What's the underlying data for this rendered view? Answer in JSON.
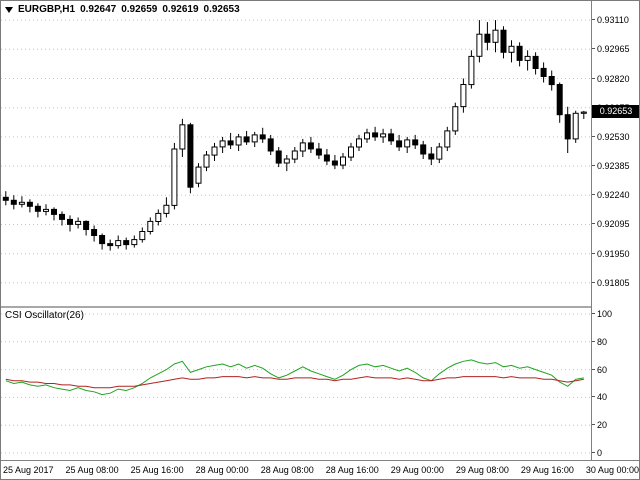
{
  "header": {
    "symbol": "EURGBP,H1",
    "open": "0.92647",
    "high": "0.92659",
    "low": "0.92619",
    "close": "0.92653",
    "marker_icon": "triangle-down-icon"
  },
  "price_axis": {
    "labels": [
      "0.93110",
      "0.92965",
      "0.92820",
      "0.92675",
      "0.92530",
      "0.92385",
      "0.92240",
      "0.92095",
      "0.91950",
      "0.91805"
    ],
    "current_price": "0.92653",
    "tag_bg": "#000000",
    "tag_text_color": "#ffffff"
  },
  "indicator": {
    "name": "CSI Oscillator(26)",
    "axis_labels": [
      "100",
      "80",
      "60",
      "40",
      "20",
      "0"
    ]
  },
  "time_axis": {
    "labels": [
      "25 Aug 2017",
      "25 Aug 08:00",
      "25 Aug 16:00",
      "28 Aug 00:00",
      "28 Aug 08:00",
      "28 Aug 16:00",
      "29 Aug 00:00",
      "29 Aug 08:00",
      "29 Aug 16:00",
      "30 Aug 00:00"
    ]
  },
  "colors": {
    "background": "#ffffff",
    "border": "#7a7a7a",
    "grid": "#c4c4c4",
    "candle_outline": "#000000",
    "bull_fill": "#ffffff",
    "bear_fill": "#000000",
    "osc_green": "#1fa41f",
    "osc_red": "#b22222",
    "text": "#000000"
  },
  "chart_data": [
    {
      "type": "candlestick",
      "title": "EURGBP,H1",
      "ylim": [
        0.9169,
        0.93205
      ],
      "y_ticks": [
        0.9311,
        0.92965,
        0.9282,
        0.92675,
        0.9253,
        0.92385,
        0.9224,
        0.92095,
        0.9195,
        0.91805
      ],
      "x_tick_labels": [
        "25 Aug 2017",
        "25 Aug 08:00",
        "25 Aug 16:00",
        "28 Aug 00:00",
        "28 Aug 08:00",
        "28 Aug 16:00",
        "29 Aug 00:00",
        "29 Aug 08:00",
        "29 Aug 16:00",
        "30 Aug 00:00"
      ],
      "current_price": 0.92653,
      "ohlc": [
        [
          0.9223,
          0.9226,
          0.9219,
          0.92215
        ],
        [
          0.92215,
          0.9224,
          0.9217,
          0.92195
        ],
        [
          0.92195,
          0.92235,
          0.9218,
          0.92205
        ],
        [
          0.92205,
          0.9222,
          0.92155,
          0.92185
        ],
        [
          0.92185,
          0.922,
          0.9213,
          0.9216
        ],
        [
          0.9216,
          0.92195,
          0.9214,
          0.9217
        ],
        [
          0.9217,
          0.9218,
          0.92115,
          0.92145
        ],
        [
          0.92145,
          0.9216,
          0.9209,
          0.9212
        ],
        [
          0.9212,
          0.9214,
          0.9206,
          0.92095
        ],
        [
          0.92095,
          0.9213,
          0.92075,
          0.9211
        ],
        [
          0.9211,
          0.92115,
          0.9204,
          0.9207
        ],
        [
          0.9207,
          0.9209,
          0.9201,
          0.9204
        ],
        [
          0.9204,
          0.9205,
          0.9197,
          0.92
        ],
        [
          0.92,
          0.9202,
          0.91965,
          0.9199
        ],
        [
          0.9199,
          0.9204,
          0.91975,
          0.92015
        ],
        [
          0.92015,
          0.9203,
          0.9197,
          0.91995
        ],
        [
          0.91995,
          0.9204,
          0.9198,
          0.9202
        ],
        [
          0.9202,
          0.9208,
          0.92005,
          0.9206
        ],
        [
          0.9206,
          0.9213,
          0.92045,
          0.9211
        ],
        [
          0.9211,
          0.9217,
          0.9209,
          0.9215
        ],
        [
          0.9215,
          0.9223,
          0.9213,
          0.9219
        ],
        [
          0.9219,
          0.925,
          0.9217,
          0.9247
        ],
        [
          0.9247,
          0.9262,
          0.9243,
          0.9259
        ],
        [
          0.9259,
          0.926,
          0.9225,
          0.9228
        ],
        [
          0.923,
          0.924,
          0.9228,
          0.9238
        ],
        [
          0.9238,
          0.9246,
          0.9236,
          0.9244
        ],
        [
          0.9244,
          0.925,
          0.9241,
          0.9248
        ],
        [
          0.9248,
          0.9253,
          0.9245,
          0.9251
        ],
        [
          0.9251,
          0.9255,
          0.9247,
          0.9249
        ],
        [
          0.9249,
          0.92545,
          0.9246,
          0.9253
        ],
        [
          0.9253,
          0.9256,
          0.9249,
          0.92505
        ],
        [
          0.92505,
          0.92555,
          0.9248,
          0.9254
        ],
        [
          0.9254,
          0.92575,
          0.925,
          0.9252
        ],
        [
          0.9252,
          0.9254,
          0.9244,
          0.9246
        ],
        [
          0.9246,
          0.9248,
          0.9238,
          0.924
        ],
        [
          0.924,
          0.9244,
          0.9236,
          0.9242
        ],
        [
          0.9242,
          0.9248,
          0.924,
          0.9246
        ],
        [
          0.9246,
          0.9252,
          0.9243,
          0.925
        ],
        [
          0.925,
          0.9253,
          0.9245,
          0.9247
        ],
        [
          0.9247,
          0.925,
          0.9242,
          0.9244
        ],
        [
          0.9244,
          0.9247,
          0.9239,
          0.9241
        ],
        [
          0.9241,
          0.9244,
          0.9237,
          0.9239
        ],
        [
          0.9239,
          0.9245,
          0.9237,
          0.9243
        ],
        [
          0.9243,
          0.925,
          0.9241,
          0.9248
        ],
        [
          0.9248,
          0.9254,
          0.9246,
          0.9252
        ],
        [
          0.9252,
          0.9257,
          0.925,
          0.9255
        ],
        [
          0.9255,
          0.9258,
          0.9251,
          0.9253
        ],
        [
          0.9253,
          0.9257,
          0.925,
          0.92545
        ],
        [
          0.92545,
          0.9257,
          0.9249,
          0.9251
        ],
        [
          0.9251,
          0.9254,
          0.9246,
          0.9248
        ],
        [
          0.9248,
          0.9253,
          0.9245,
          0.92515
        ],
        [
          0.92515,
          0.9254,
          0.9247,
          0.9249
        ],
        [
          0.9249,
          0.9251,
          0.9242,
          0.92445
        ],
        [
          0.92445,
          0.9248,
          0.9239,
          0.9242
        ],
        [
          0.9242,
          0.925,
          0.924,
          0.9248
        ],
        [
          0.9248,
          0.9258,
          0.9246,
          0.9256
        ],
        [
          0.9256,
          0.927,
          0.9254,
          0.9268
        ],
        [
          0.9268,
          0.9282,
          0.9265,
          0.9279
        ],
        [
          0.9279,
          0.9296,
          0.9277,
          0.9293
        ],
        [
          0.9293,
          0.9311,
          0.929,
          0.9304
        ],
        [
          0.9304,
          0.931,
          0.9296,
          0.93
        ],
        [
          0.93,
          0.9311,
          0.9295,
          0.9306
        ],
        [
          0.9306,
          0.9308,
          0.9292,
          0.9295
        ],
        [
          0.9295,
          0.9301,
          0.929,
          0.9298
        ],
        [
          0.9298,
          0.93,
          0.9288,
          0.9291
        ],
        [
          0.9291,
          0.9296,
          0.9286,
          0.9293
        ],
        [
          0.9293,
          0.9295,
          0.9284,
          0.9287
        ],
        [
          0.9287,
          0.929,
          0.928,
          0.9283
        ],
        [
          0.9283,
          0.9286,
          0.9276,
          0.9279
        ],
        [
          0.9279,
          0.928,
          0.926,
          0.9264
        ],
        [
          0.9264,
          0.9268,
          0.9245,
          0.9252
        ],
        [
          0.9252,
          0.9266,
          0.925,
          0.92647
        ],
        [
          0.92647,
          0.92659,
          0.92619,
          0.92653
        ]
      ]
    },
    {
      "type": "line",
      "title": "CSI Oscillator(26)",
      "ylim": [
        0,
        100
      ],
      "y_ticks": [
        100,
        80,
        60,
        40,
        20,
        0
      ],
      "series": [
        {
          "name": "csi-green",
          "color": "#1fa41f",
          "values": [
            52,
            50,
            51,
            49,
            48,
            49,
            47,
            46,
            45,
            47,
            45,
            44,
            42,
            43,
            46,
            45,
            47,
            50,
            54,
            57,
            60,
            64,
            66,
            58,
            60,
            62,
            63,
            64,
            62,
            64,
            61,
            63,
            61,
            57,
            54,
            56,
            59,
            62,
            59,
            57,
            55,
            53,
            56,
            60,
            63,
            64,
            62,
            63,
            61,
            59,
            61,
            58,
            54,
            52,
            57,
            61,
            64,
            66,
            67,
            65,
            64,
            65,
            62,
            63,
            61,
            62,
            60,
            58,
            56,
            51,
            48,
            53,
            54
          ]
        },
        {
          "name": "csi-red",
          "color": "#b22222",
          "values": [
            53,
            52,
            52,
            51,
            51,
            50,
            50,
            49,
            49,
            48,
            48,
            47,
            47,
            47,
            48,
            48,
            48,
            49,
            50,
            51,
            52,
            53,
            54,
            53,
            53,
            54,
            54,
            55,
            55,
            55,
            54,
            55,
            54,
            54,
            53,
            53,
            54,
            54,
            54,
            53,
            53,
            52,
            53,
            53,
            54,
            55,
            54,
            54,
            54,
            53,
            54,
            53,
            52,
            52,
            53,
            54,
            54,
            55,
            55,
            55,
            55,
            55,
            54,
            55,
            54,
            54,
            54,
            53,
            53,
            52,
            51,
            52,
            53
          ]
        }
      ]
    }
  ]
}
